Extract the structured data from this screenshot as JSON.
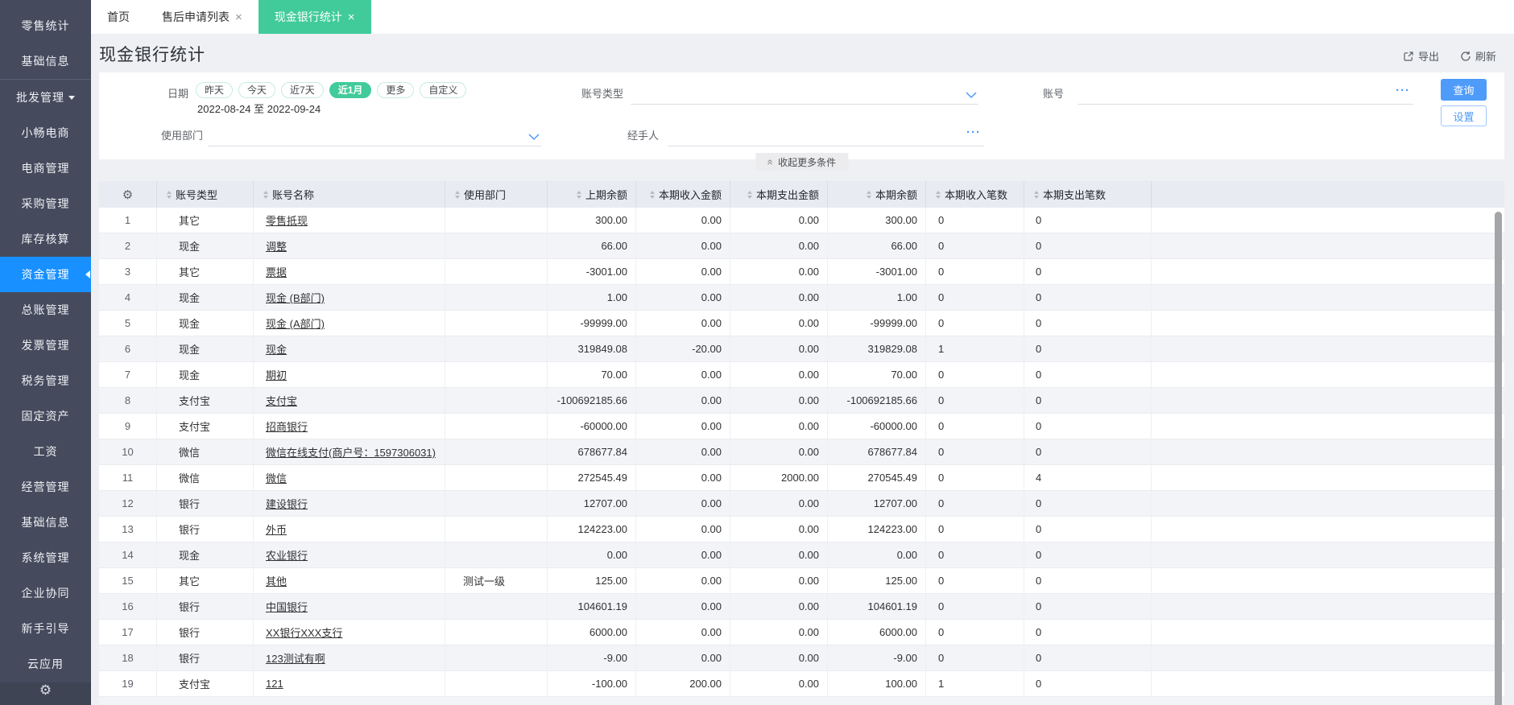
{
  "sidebar": {
    "items": [
      {
        "label": "零售统计"
      },
      {
        "label": "基础信息"
      },
      {
        "label": "批发管理",
        "arrow": true
      },
      {
        "label": "小畅电商"
      },
      {
        "label": "电商管理"
      },
      {
        "label": "采购管理"
      },
      {
        "label": "库存核算"
      },
      {
        "label": "资金管理",
        "active": true
      },
      {
        "label": "总账管理"
      },
      {
        "label": "发票管理"
      },
      {
        "label": "税务管理"
      },
      {
        "label": "固定资产"
      },
      {
        "label": "工资"
      },
      {
        "label": "经营管理"
      },
      {
        "label": "基础信息"
      },
      {
        "label": "系统管理"
      },
      {
        "label": "企业协同"
      },
      {
        "label": "新手引导"
      },
      {
        "label": "云应用"
      }
    ]
  },
  "tabs": [
    {
      "label": "首页",
      "closable": false,
      "active": false
    },
    {
      "label": "售后申请列表",
      "closable": true,
      "active": false
    },
    {
      "label": "现金银行统计",
      "closable": true,
      "active": true
    }
  ],
  "page": {
    "title": "现金银行统计",
    "export_label": "导出",
    "refresh_label": "刷新"
  },
  "filters": {
    "date": {
      "label": "日期",
      "presets": [
        "昨天",
        "今天",
        "近7天",
        "近1月",
        "更多",
        "自定义"
      ],
      "selected": "近1月",
      "range": "2022-08-24 至 2022-09-24"
    },
    "account_type_label": "账号类型",
    "account_label": "账号",
    "department_label": "使用部门",
    "handler_label": "经手人",
    "query_label": "查询",
    "settings_label": "设置",
    "collapse_label": "收起更多条件"
  },
  "icons": {
    "gear": "⚙",
    "ellipsis": "···",
    "collapse": "«"
  },
  "table": {
    "columns": [
      "账号类型",
      "账号名称",
      "使用部门",
      "上期余额",
      "本期收入金额",
      "本期支出金额",
      "本期余额",
      "本期收入笔数",
      "本期支出笔数"
    ],
    "rows": [
      {
        "no": "1",
        "type": "其它",
        "name": "零售抵现",
        "dept": "",
        "prev": "300.00",
        "income": "0.00",
        "expense": "0.00",
        "balance": "300.00",
        "income_count": "0",
        "expense_count": "0"
      },
      {
        "no": "2",
        "type": "现金",
        "name": "调整",
        "dept": "",
        "prev": "66.00",
        "income": "0.00",
        "expense": "0.00",
        "balance": "66.00",
        "income_count": "0",
        "expense_count": "0"
      },
      {
        "no": "3",
        "type": "其它",
        "name": "票据",
        "dept": "",
        "prev": "-3001.00",
        "income": "0.00",
        "expense": "0.00",
        "balance": "-3001.00",
        "income_count": "0",
        "expense_count": "0"
      },
      {
        "no": "4",
        "type": "现金",
        "name": "现金 (B部门)",
        "dept": "",
        "prev": "1.00",
        "income": "0.00",
        "expense": "0.00",
        "balance": "1.00",
        "income_count": "0",
        "expense_count": "0"
      },
      {
        "no": "5",
        "type": "现金",
        "name": "现金 (A部门)",
        "dept": "",
        "prev": "-99999.00",
        "income": "0.00",
        "expense": "0.00",
        "balance": "-99999.00",
        "income_count": "0",
        "expense_count": "0"
      },
      {
        "no": "6",
        "type": "现金",
        "name": "现金",
        "dept": "",
        "prev": "319849.08",
        "income": "-20.00",
        "expense": "0.00",
        "balance": "319829.08",
        "income_count": "1",
        "expense_count": "0"
      },
      {
        "no": "7",
        "type": "现金",
        "name": "期初",
        "dept": "",
        "prev": "70.00",
        "income": "0.00",
        "expense": "0.00",
        "balance": "70.00",
        "income_count": "0",
        "expense_count": "0"
      },
      {
        "no": "8",
        "type": "支付宝",
        "name": "支付宝",
        "dept": "",
        "prev": "-100692185.66",
        "income": "0.00",
        "expense": "0.00",
        "balance": "-100692185.66",
        "income_count": "0",
        "expense_count": "0"
      },
      {
        "no": "9",
        "type": "支付宝",
        "name": "招商银行",
        "dept": "",
        "prev": "-60000.00",
        "income": "0.00",
        "expense": "0.00",
        "balance": "-60000.00",
        "income_count": "0",
        "expense_count": "0"
      },
      {
        "no": "10",
        "type": "微信",
        "name": "微信在线支付(商户号：1597306031)",
        "dept": "",
        "prev": "678677.84",
        "income": "0.00",
        "expense": "0.00",
        "balance": "678677.84",
        "income_count": "0",
        "expense_count": "0"
      },
      {
        "no": "11",
        "type": "微信",
        "name": "微信",
        "dept": "",
        "prev": "272545.49",
        "income": "0.00",
        "expense": "2000.00",
        "balance": "270545.49",
        "income_count": "0",
        "expense_count": "4"
      },
      {
        "no": "12",
        "type": "银行",
        "name": "建设银行",
        "dept": "",
        "prev": "12707.00",
        "income": "0.00",
        "expense": "0.00",
        "balance": "12707.00",
        "income_count": "0",
        "expense_count": "0"
      },
      {
        "no": "13",
        "type": "银行",
        "name": "外币",
        "dept": "",
        "prev": "124223.00",
        "income": "0.00",
        "expense": "0.00",
        "balance": "124223.00",
        "income_count": "0",
        "expense_count": "0"
      },
      {
        "no": "14",
        "type": "现金",
        "name": "农业银行",
        "dept": "",
        "prev": "0.00",
        "income": "0.00",
        "expense": "0.00",
        "balance": "0.00",
        "income_count": "0",
        "expense_count": "0"
      },
      {
        "no": "15",
        "type": "其它",
        "name": "其他",
        "dept": "测试一级",
        "prev": "125.00",
        "income": "0.00",
        "expense": "0.00",
        "balance": "125.00",
        "income_count": "0",
        "expense_count": "0"
      },
      {
        "no": "16",
        "type": "银行",
        "name": "中国银行",
        "dept": "",
        "prev": "104601.19",
        "income": "0.00",
        "expense": "0.00",
        "balance": "104601.19",
        "income_count": "0",
        "expense_count": "0"
      },
      {
        "no": "17",
        "type": "银行",
        "name": "XX银行XXX支行",
        "dept": "",
        "prev": "6000.00",
        "income": "0.00",
        "expense": "0.00",
        "balance": "6000.00",
        "income_count": "0",
        "expense_count": "0"
      },
      {
        "no": "18",
        "type": "银行",
        "name": "123测试有啊",
        "dept": "",
        "prev": "-9.00",
        "income": "0.00",
        "expense": "0.00",
        "balance": "-9.00",
        "income_count": "0",
        "expense_count": "0"
      },
      {
        "no": "19",
        "type": "支付宝",
        "name": "121",
        "dept": "",
        "prev": "-100.00",
        "income": "200.00",
        "expense": "0.00",
        "balance": "100.00",
        "income_count": "1",
        "expense_count": "0"
      }
    ]
  }
}
